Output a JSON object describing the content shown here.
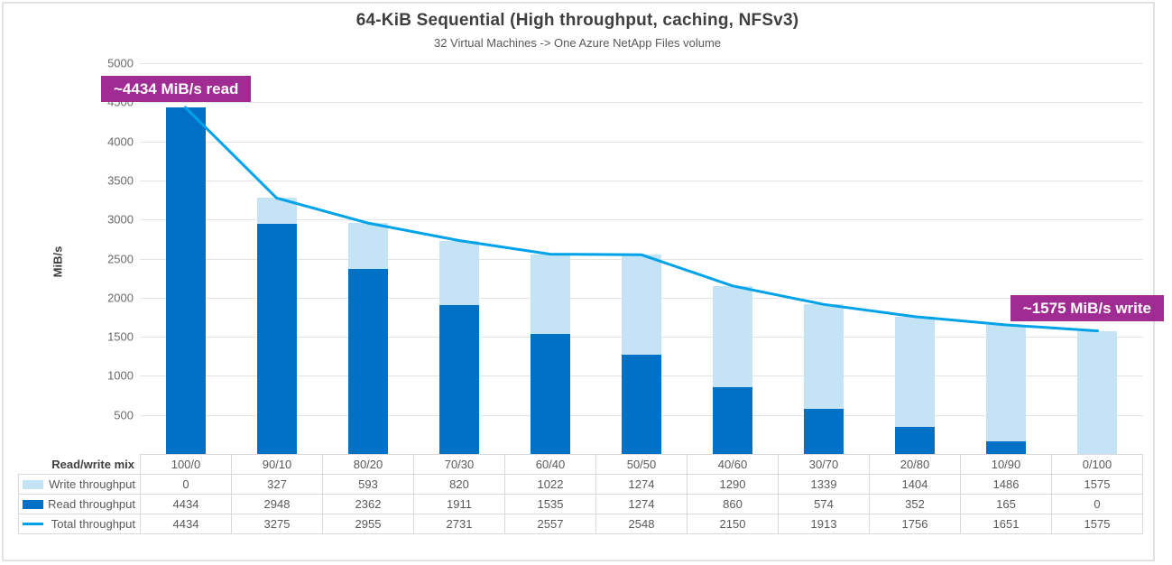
{
  "title": "64-KiB Sequential (High throughput, caching, NFSv3)",
  "subtitle": "32 Virtual Machines -> One Azure NetApp Files volume",
  "y_axis_title": "MiB/s",
  "callouts": {
    "read": "~4434 MiB/s read",
    "write": "~1575 MiB/s write"
  },
  "colors": {
    "read_bar": "#0071C5",
    "write_bar": "#C4E3F5",
    "total_line": "#00A2E8",
    "callout_bg": "#A02B93",
    "grid": "#E4E4E4",
    "table_border": "#D9D9D9",
    "title_text": "#3F3F3F",
    "axis_text": "#6B6B6B"
  },
  "chart_data": {
    "type": "bar",
    "subtype": "stacked-bars-with-total-line",
    "title": "64-KiB Sequential (High throughput, caching, NFSv3)",
    "subtitle": "32 Virtual Machines -> One Azure NetApp Files volume",
    "xlabel": "Read/write mix",
    "ylabel": "MiB/s",
    "ylim": [
      0,
      5000
    ],
    "ytick_step": 500,
    "grid": true,
    "legend_position": "left-of-data-table",
    "categories_label": "Read/write mix",
    "categories": [
      "100/0",
      "90/10",
      "80/20",
      "70/30",
      "60/40",
      "50/50",
      "40/60",
      "30/70",
      "20/80",
      "10/90",
      "0/100"
    ],
    "series": [
      {
        "name": "Write throughput",
        "type": "bar",
        "color": "#C4E3F5",
        "values": [
          0,
          327,
          593,
          820,
          1022,
          1274,
          1290,
          1339,
          1404,
          1486,
          1575
        ]
      },
      {
        "name": "Read throughput",
        "type": "bar",
        "color": "#0071C5",
        "values": [
          4434,
          2948,
          2362,
          1911,
          1535,
          1274,
          860,
          574,
          352,
          165,
          0
        ]
      },
      {
        "name": "Total throughput",
        "type": "line",
        "color": "#00A2E8",
        "values": [
          4434,
          3275,
          2955,
          2731,
          2557,
          2548,
          2150,
          1913,
          1756,
          1651,
          1575
        ]
      }
    ],
    "annotations": [
      {
        "text": "~4434 MiB/s read",
        "color": "#A02B93",
        "position": "top-left"
      },
      {
        "text": "~1575 MiB/s write",
        "color": "#A02B93",
        "position": "middle-right"
      }
    ]
  }
}
